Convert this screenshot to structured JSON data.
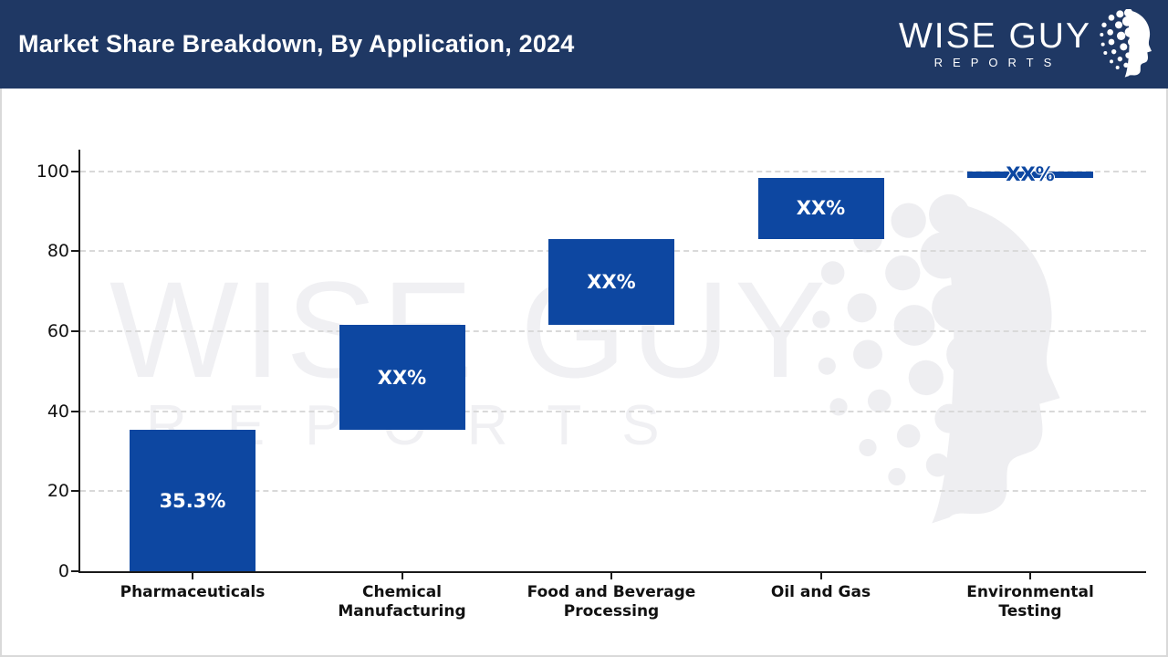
{
  "header": {
    "title": "Market Share Breakdown, By Application, 2024",
    "logo": {
      "line1": "WISE GUY",
      "line2": "REPORTS"
    }
  },
  "watermark": {
    "line1": "WISE GUY",
    "line2": "REPORTS"
  },
  "chart_data": {
    "type": "bar",
    "subtype": "waterfall-stacked-market-share",
    "title": "Market Share Breakdown, By Application, 2024",
    "categories": [
      "Pharmaceuticals",
      "Chemical\nManufacturing",
      "Food and Beverage\nProcessing",
      "Oil and Gas",
      "Environmental\nTesting"
    ],
    "segments": [
      [
        0,
        35.3
      ],
      [
        35.3,
        61.5
      ],
      [
        61.5,
        83.0
      ],
      [
        83.0,
        98.4
      ],
      [
        98.4,
        100.0
      ]
    ],
    "bar_labels": [
      "35.3%",
      "XX%",
      "XX%",
      "XX%",
      "XX%"
    ],
    "yticks": [
      0,
      20,
      40,
      60,
      80,
      100
    ],
    "ylim": [
      0,
      105
    ],
    "xlabel": "",
    "ylabel": "",
    "grid": "horizontal-dashed",
    "legend": "none",
    "bar_color": "#0d47a1",
    "bar_label_color": "#ffffff",
    "grid_color": "#d9d9d9",
    "header_bg": "#1f3864",
    "watermark_color": "#f0f0f3"
  }
}
